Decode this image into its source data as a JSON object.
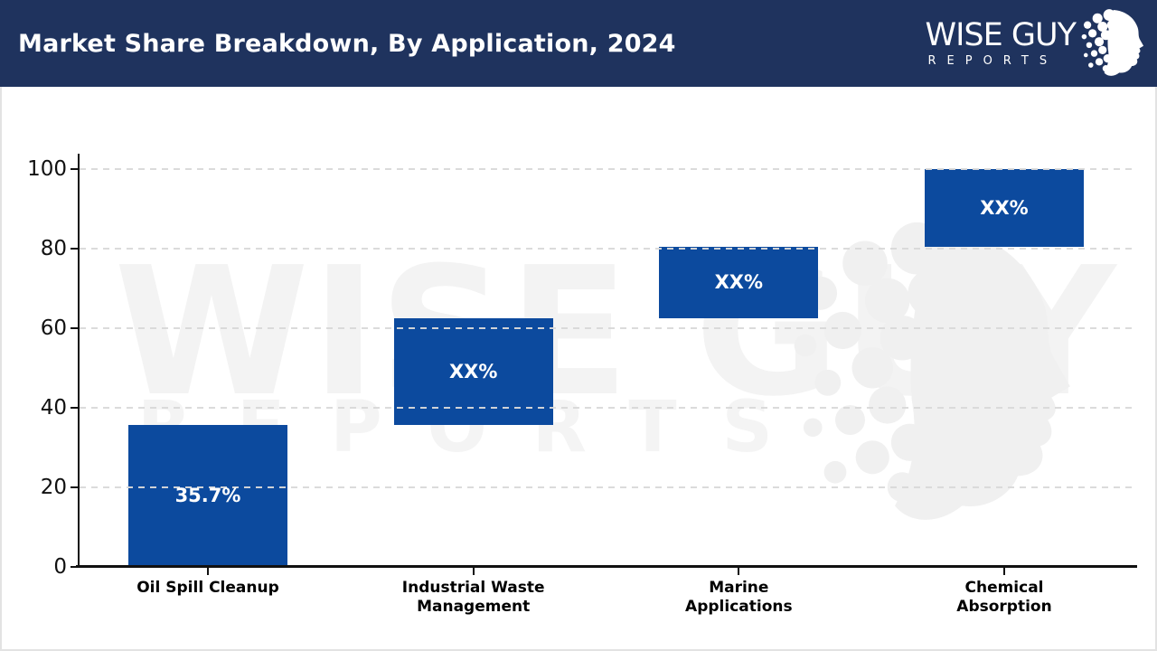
{
  "header": {
    "title": "Market Share Breakdown, By Application, 2024",
    "logo": {
      "line1": "WISE GUY",
      "line2": "REPORTS"
    }
  },
  "watermark": {
    "line1": "WISE GUY",
    "line2": "REPORTS"
  },
  "chart_data": {
    "type": "bar",
    "subtype": "waterfall",
    "title": "Market Share Breakdown, By Application, 2024",
    "categories": [
      "Oil Spill Cleanup",
      "Industrial Waste\nManagement",
      "Marine\nApplications",
      "Chemical\nAbsorption"
    ],
    "series": [
      {
        "name": "Market share (%)",
        "bars": [
          {
            "category": "Oil Spill Cleanup",
            "start": 0,
            "end": 35.7,
            "label": "35.7%"
          },
          {
            "category": "Industrial Waste Management",
            "start": 35.7,
            "end": 62.5,
            "label": "XX%"
          },
          {
            "category": "Marine Applications",
            "start": 62.5,
            "end": 80.5,
            "label": "XX%"
          },
          {
            "category": "Chemical Absorption",
            "start": 80.5,
            "end": 100,
            "label": "XX%"
          }
        ]
      }
    ],
    "xlabel": "",
    "ylabel": "",
    "ylim": [
      0,
      100
    ],
    "yticks": [
      0,
      20,
      40,
      60,
      80,
      100
    ],
    "grid": "horizontal-dashed",
    "legend": "none",
    "colors": {
      "bar": "#0c4a9e",
      "bar_label": "#ffffff",
      "grid": "#d9d9d9",
      "axis": "#111111",
      "header_bg": "#1f335e",
      "watermark": "#f3f3f3"
    }
  }
}
